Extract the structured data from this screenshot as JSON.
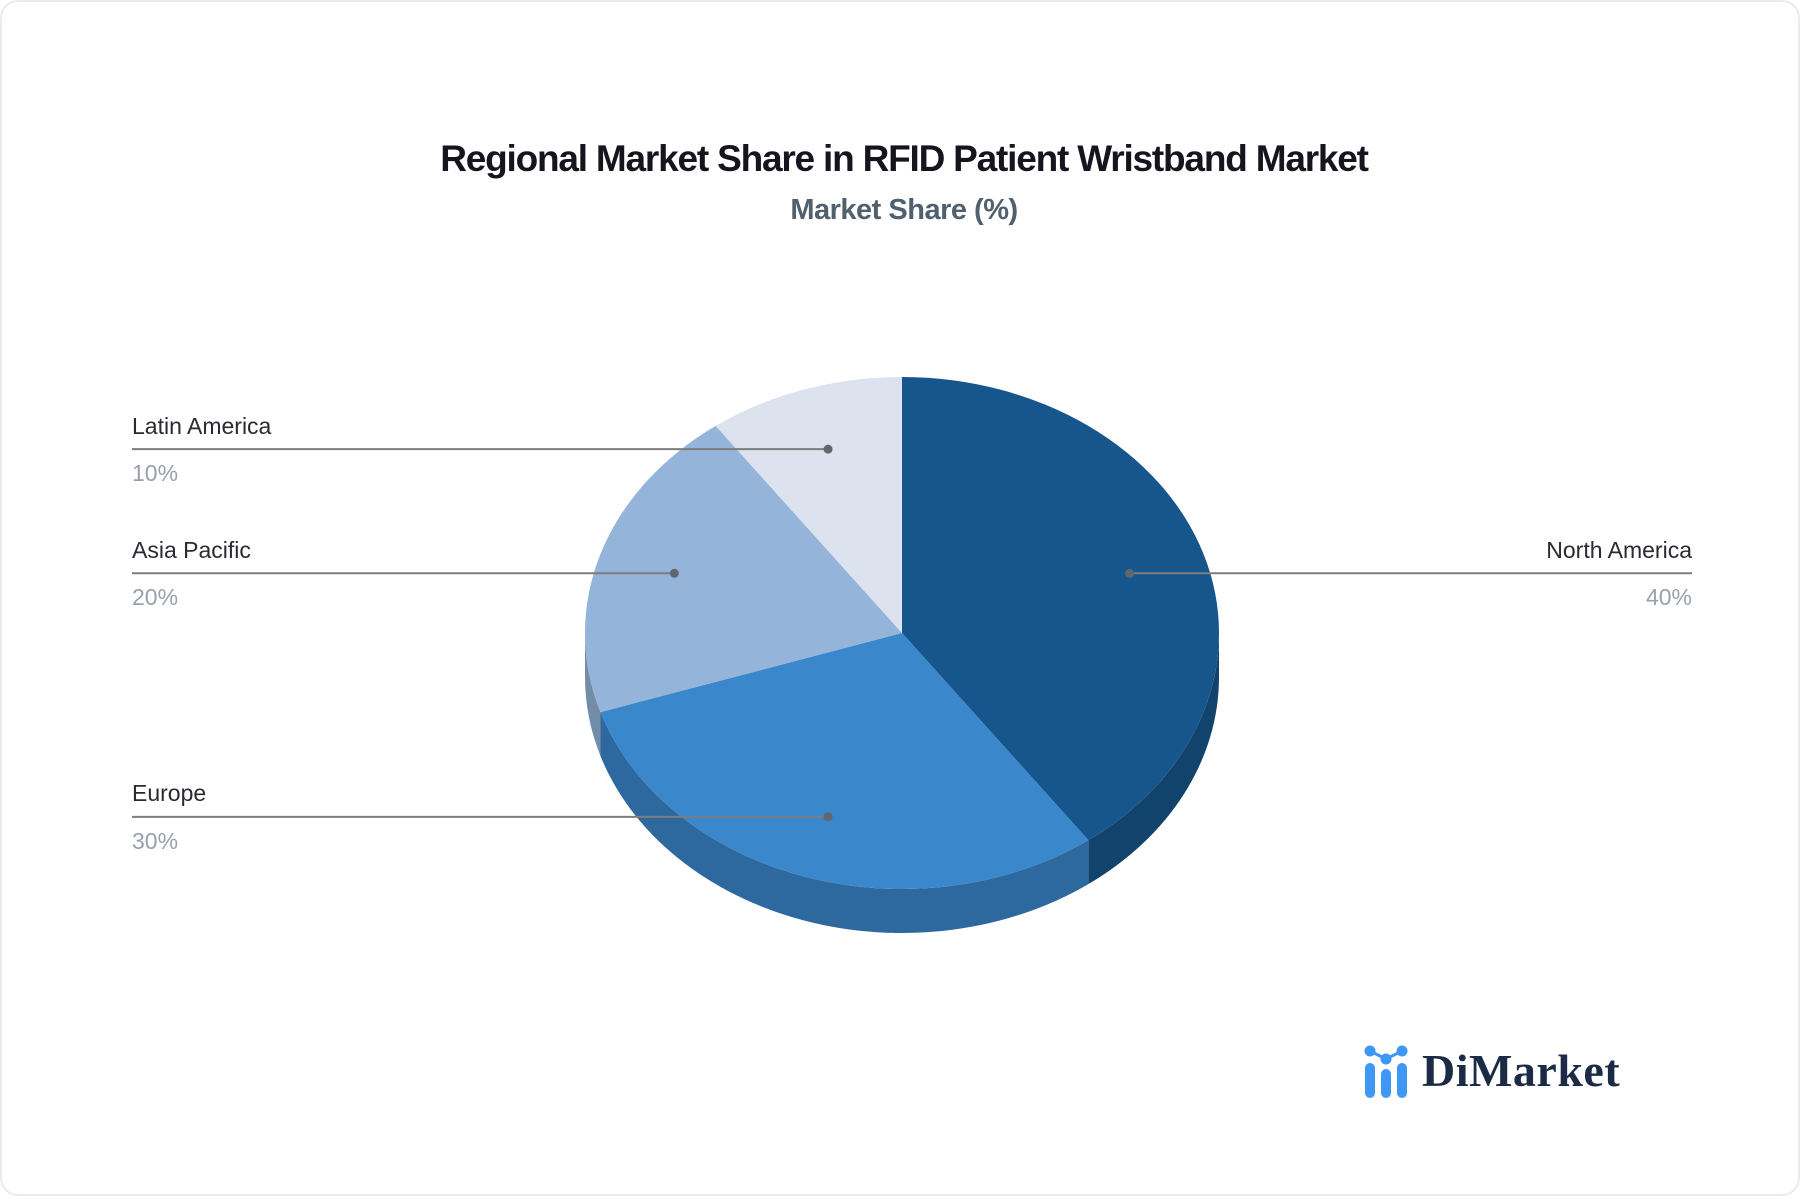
{
  "chart_data": {
    "type": "pie",
    "style": "pie-3d",
    "title": "Regional Market Share in RFID Patient Wristband Market",
    "subtitle": "Market Share (%)",
    "unit": "%",
    "direction": "clockwise",
    "start_angle": "12-o'clock",
    "legend_position": "none",
    "leader_line_color": "#7D7D7D",
    "slices": [
      {
        "name": "North America",
        "value": 40,
        "pct_label": "40%",
        "color": "#17568C",
        "label_side": "right"
      },
      {
        "name": "Europe",
        "value": 30,
        "pct_label": "30%",
        "color": "#3A87CB",
        "label_side": "left"
      },
      {
        "name": "Asia Pacific",
        "value": 20,
        "pct_label": "20%",
        "color": "#94B5D9",
        "label_side": "left"
      },
      {
        "name": "Latin America",
        "value": 10,
        "pct_label": "10%",
        "color": "#DDE3EE",
        "label_side": "left"
      }
    ]
  },
  "logo": {
    "text": "DiMarket",
    "icon": "bar-line-chart-icon",
    "icon_color": "#3E97F5",
    "text_color": "#1B2B45"
  }
}
